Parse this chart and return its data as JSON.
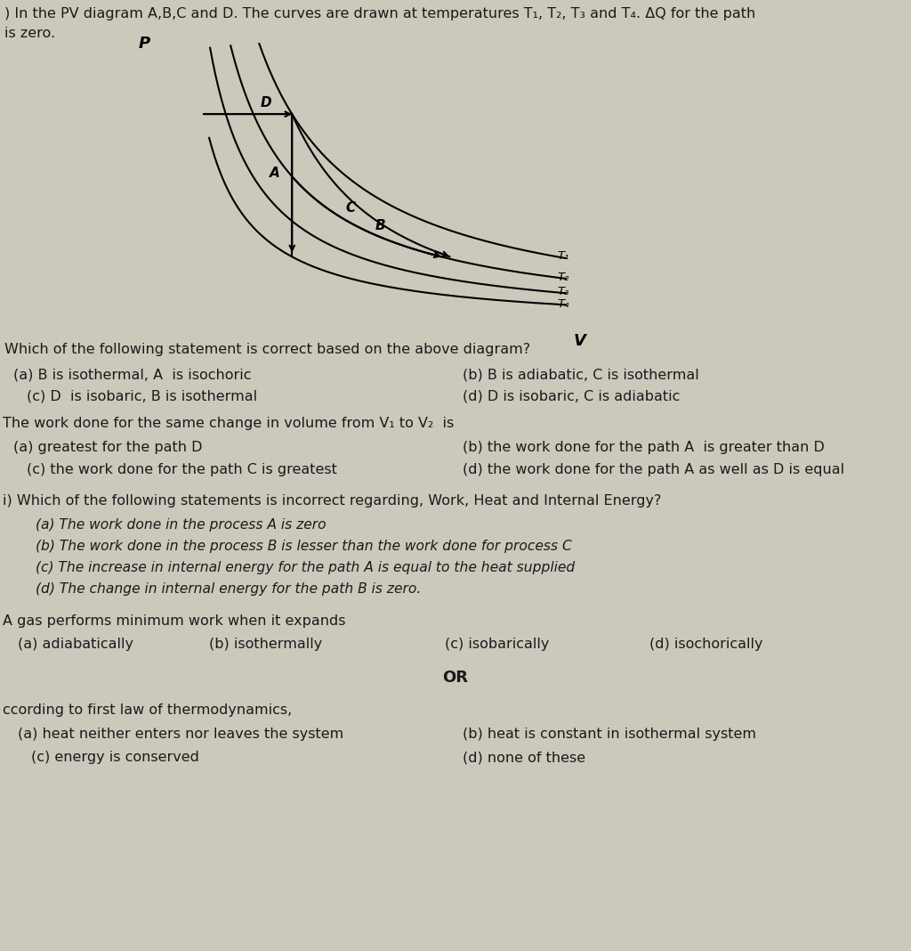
{
  "title_line1": ") In the PV diagram A,B,C and D. The curves are drawn at temperatures T₁, T₂, T₃ and T₄. ΔQ for the path",
  "title_line2": "is zero.",
  "diagram": {
    "xlabel": "V",
    "ylabel": "P",
    "T_labels": [
      "T₁",
      "T₂",
      "T₃",
      "T₄"
    ],
    "path_labels": [
      "A",
      "B",
      "C",
      "D"
    ],
    "bg_color": "#dedad0"
  },
  "q1_text": "Which of the following statement is correct based on the above diagram?",
  "q1_a": "(a) B is isothermal, A  is isochoric",
  "q1_b": "(b) B is adiabatic, C is isothermal",
  "q1_c": "(c) D  is isobaric, B is isothermal",
  "q1_d": "(d) D is isobaric, C is adiabatic",
  "q2_text": "The work done for the same change in volume from V₁ to V₂  is",
  "q2_a": "(a) greatest for the path D",
  "q2_b": "(b) the work done for the path A  is greater than D",
  "q2_c": "(c) the work done for the path C is greatest",
  "q2_d": "(d) the work done for the path A as well as D is equal",
  "q3_text": "i) Which of the following statements is incorrect regarding, Work, Heat and Internal Energy?",
  "q3_a": "(a) The work done in the process A is zero",
  "q3_b": "(b) The work done in the process B is lesser than the work done for process C",
  "q3_c": "(c) The increase in internal energy for the path A is equal to the heat supplied",
  "q3_d": "(d) The change in internal energy for the path B is zero.",
  "q4_text": "A gas performs minimum work when it expands",
  "q4_a": "(a) adiabatically",
  "q4_b": "(b) isothermally",
  "q4_c": "(c) isobarically",
  "q4_d": "(d) isochorically",
  "or_text": "OR",
  "q5_text": "ccording to first law of thermodynamics,",
  "q5_a": "(a) heat neither enters nor leaves the system",
  "q5_b": "(b) heat is constant in isothermal system",
  "q5_c": "(c) energy is conserved",
  "q5_d": "(d) none of these",
  "text_color": "#1a1a1a",
  "bg_page": "#ccc8bc"
}
